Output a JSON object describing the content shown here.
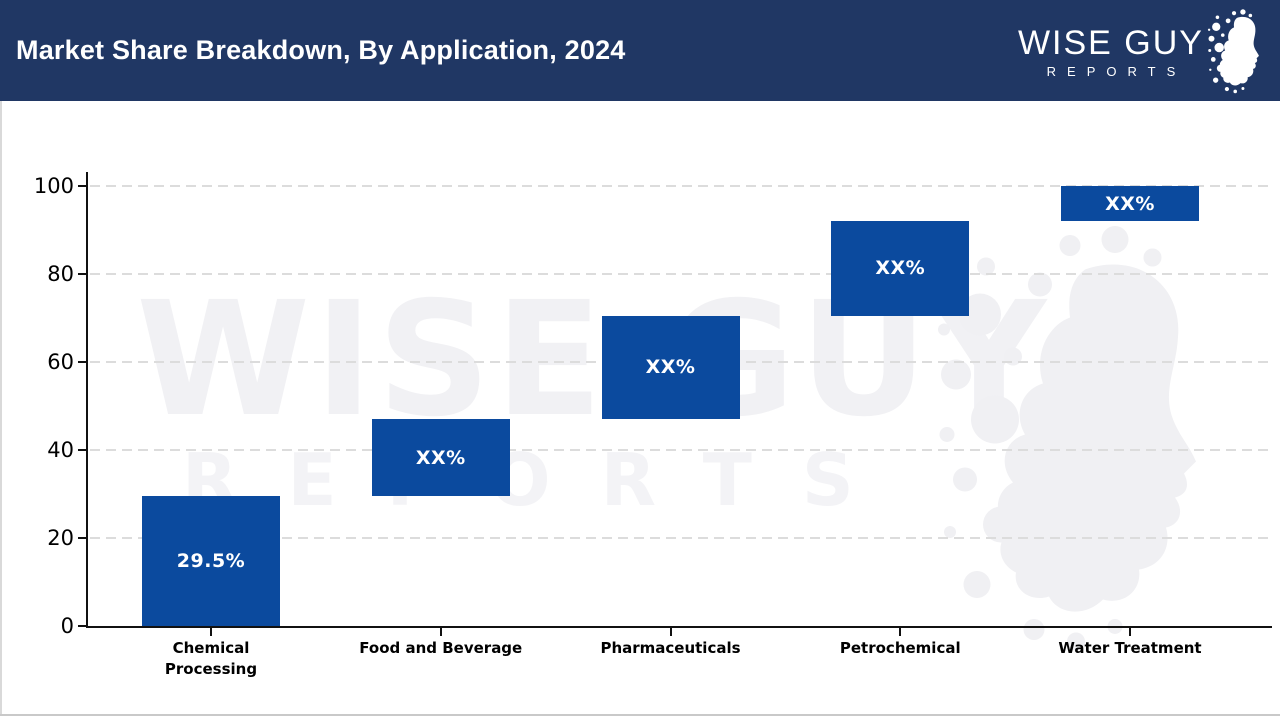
{
  "header": {
    "title": "Market Share Breakdown, By Application, 2024"
  },
  "branding": {
    "logo_line1": "WISE GUY",
    "logo_line2": "REPORTS",
    "watermark_line1": "WISE GUY",
    "watermark_line2": "REPORTS",
    "face_icon": "dotted-head-profile"
  },
  "colors": {
    "header_navy": "#203764",
    "bar_blue": "#0b4a9e",
    "bar_label_white": "#ffffff",
    "gridline_gray": "#dcdcdc",
    "watermark_gray": "#f1f1f4"
  },
  "chart_data": {
    "type": "bar",
    "subtype": "floating-waterfall",
    "title": "Market Share Breakdown, By Application, 2024",
    "categories": [
      "Chemical Processing",
      "Food and Beverage",
      "Pharmaceuticals",
      "Petrochemical",
      "Water Treatment"
    ],
    "bars": [
      {
        "category": "Chemical Processing",
        "start": 0,
        "end": 29.5,
        "label": "29.5%"
      },
      {
        "category": "Food and Beverage",
        "start": 29.5,
        "end": 47,
        "label": "XX%"
      },
      {
        "category": "Pharmaceuticals",
        "start": 47,
        "end": 70.5,
        "label": "XX%"
      },
      {
        "category": "Petrochemical",
        "start": 70.5,
        "end": 92,
        "label": "XX%"
      },
      {
        "category": "Water Treatment",
        "start": 92,
        "end": 100,
        "label": "XX%"
      }
    ],
    "yticks": [
      0,
      20,
      40,
      60,
      80,
      100
    ],
    "ylim": [
      0,
      103
    ],
    "xlabel": "",
    "ylabel": "",
    "grid": "dashed-horizontal",
    "legend": null
  }
}
